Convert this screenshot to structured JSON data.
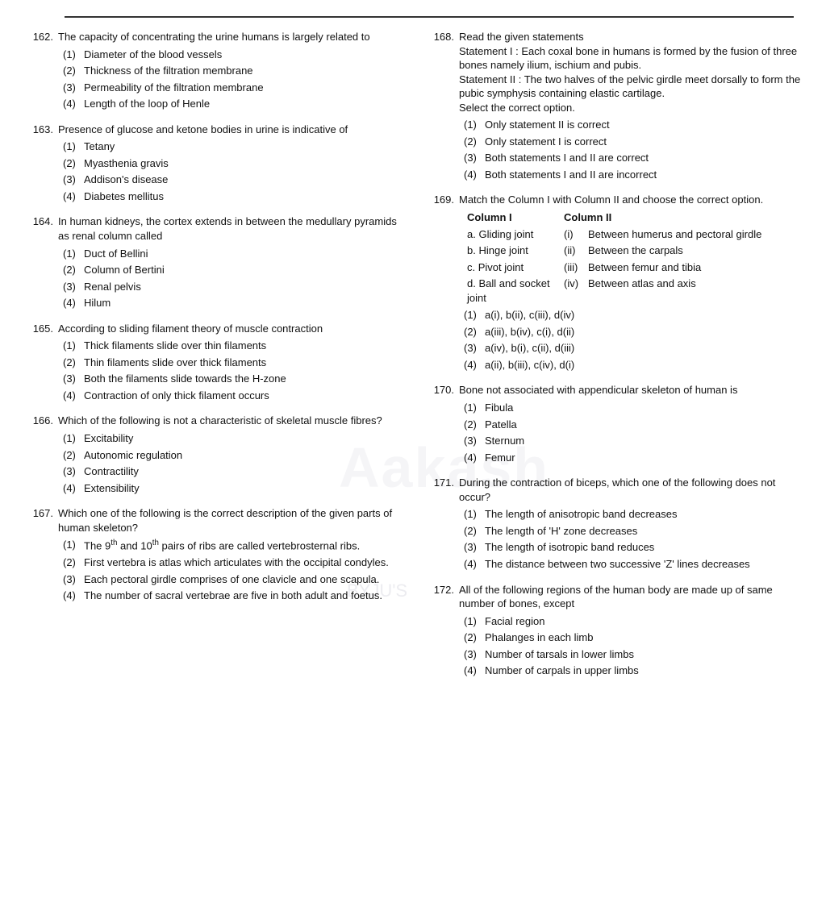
{
  "left": [
    {
      "num": "162.",
      "text": "The capacity of concentrating the urine humans is largely related to",
      "opts": [
        {
          "n": "(1)",
          "t": "Diameter of the blood vessels"
        },
        {
          "n": "(2)",
          "t": "Thickness of the filtration membrane"
        },
        {
          "n": "(3)",
          "t": "Permeability of the filtration membrane"
        },
        {
          "n": "(4)",
          "t": "Length of the loop of Henle"
        }
      ]
    },
    {
      "num": "163.",
      "text": "Presence of glucose and ketone bodies in urine is indicative of",
      "opts": [
        {
          "n": "(1)",
          "t": "Tetany"
        },
        {
          "n": "(2)",
          "t": "Myasthenia gravis"
        },
        {
          "n": "(3)",
          "t": "Addison's disease"
        },
        {
          "n": "(4)",
          "t": "Diabetes mellitus"
        }
      ]
    },
    {
      "num": "164.",
      "text": "In human kidneys, the cortex extends in between the medullary pyramids as renal column called",
      "opts": [
        {
          "n": "(1)",
          "t": "Duct of Bellini"
        },
        {
          "n": "(2)",
          "t": "Column of Bertini"
        },
        {
          "n": "(3)",
          "t": "Renal pelvis"
        },
        {
          "n": "(4)",
          "t": "Hilum"
        }
      ]
    },
    {
      "num": "165.",
      "text": "According to sliding filament theory of muscle contraction",
      "opts": [
        {
          "n": "(1)",
          "t": "Thick filaments slide over thin filaments"
        },
        {
          "n": "(2)",
          "t": "Thin filaments slide over thick filaments"
        },
        {
          "n": "(3)",
          "t": "Both the filaments slide towards the H-zone"
        },
        {
          "n": "(4)",
          "t": "Contraction of only thick filament occurs"
        }
      ]
    },
    {
      "num": "166.",
      "text": "Which of the following is not a characteristic of skeletal muscle fibres?",
      "opts": [
        {
          "n": "(1)",
          "t": "Excitability"
        },
        {
          "n": "(2)",
          "t": "Autonomic regulation"
        },
        {
          "n": "(3)",
          "t": "Contractility"
        },
        {
          "n": "(4)",
          "t": "Extensibility"
        }
      ]
    }
  ],
  "q167": {
    "num": "167.",
    "text": "Which one of the following is the correct description of the given parts of human skeleton?",
    "opts": [
      {
        "n": "(1)",
        "t_pre": "The 9",
        "sup1": "th",
        "t_mid": " and 10",
        "sup2": "th",
        "t_post": " pairs of ribs are called vertebrosternal ribs."
      },
      {
        "n": "(2)",
        "t": "First vertebra is atlas which articulates with the occipital condyles."
      },
      {
        "n": "(3)",
        "t": "Each pectoral girdle comprises of one clavicle and one scapula."
      },
      {
        "n": "(4)",
        "t": "The number of sacral vertebrae are five in both adult and foetus."
      }
    ]
  },
  "q168": {
    "num": "168.",
    "intro": "Read the given statements",
    "s1": "Statement I : Each coxal bone in humans is formed by the fusion of three bones namely ilium, ischium and pubis.",
    "s2": "Statement II : The two halves of the pelvic girdle meet dorsally to form the pubic symphysis containing elastic cartilage.",
    "sel": "Select the correct option.",
    "opts": [
      {
        "n": "(1)",
        "t": "Only statement II is correct"
      },
      {
        "n": "(2)",
        "t": "Only statement I is correct"
      },
      {
        "n": "(3)",
        "t": "Both statements I and II are correct"
      },
      {
        "n": "(4)",
        "t": "Both statements I and II are incorrect"
      }
    ]
  },
  "q169": {
    "num": "169.",
    "text": "Match the Column I with Column II and choose the correct option.",
    "h1": "Column I",
    "h2": "Column II",
    "rows": [
      {
        "a": "a. Gliding joint",
        "b": "(i)",
        "c": "Between humerus and pectoral girdle"
      },
      {
        "a": "b. Hinge joint",
        "b2": "(ii)",
        "c": "Between the carpals"
      },
      {
        "a": "c. Pivot joint",
        "b2": "(iii)",
        "c": "Between femur and tibia"
      },
      {
        "a": "d. Ball and socket joint",
        "b2": "(iv)",
        "c": "Between atlas and axis"
      }
    ],
    "opts": [
      {
        "n": "(1)",
        "t": "a(i), b(ii), c(iii), d(iv)"
      },
      {
        "n": "(2)",
        "t": "a(iii), b(iv), c(i), d(ii)"
      },
      {
        "n": "(3)",
        "t": "a(iv), b(i), c(ii), d(iii)"
      },
      {
        "n": "(4)",
        "t": "a(ii), b(iii), c(iv), d(i)"
      }
    ]
  },
  "right_rest": [
    {
      "num": "170.",
      "text": "Bone not associated with appendicular skeleton of human is",
      "opts": [
        {
          "n": "(1)",
          "t": "Fibula"
        },
        {
          "n": "(2)",
          "t": "Patella"
        },
        {
          "n": "(3)",
          "t": "Sternum"
        },
        {
          "n": "(4)",
          "t": "Femur"
        }
      ]
    },
    {
      "num": "171.",
      "text": "During the contraction of biceps, which one of the following does not occur?",
      "opts": [
        {
          "n": "(1)",
          "t": "The length of anisotropic band decreases"
        },
        {
          "n": "(2)",
          "t": "The length of 'H' zone decreases"
        },
        {
          "n": "(3)",
          "t": "The length of isotropic band reduces"
        },
        {
          "n": "(4)",
          "t": "The distance between two successive 'Z' lines decreases"
        }
      ]
    },
    {
      "num": "172.",
      "text": "All of the following regions of the human body are made up of same number of bones, except",
      "opts": [
        {
          "n": "(1)",
          "t": "Facial region"
        },
        {
          "n": "(2)",
          "t": "Phalanges in each limb"
        },
        {
          "n": "(3)",
          "t": "Number of tarsals in lower limbs"
        },
        {
          "n": "(4)",
          "t": "Number of carpals in upper limbs"
        }
      ]
    }
  ],
  "watermark": "Aakash",
  "byjus": "BYJU'S"
}
